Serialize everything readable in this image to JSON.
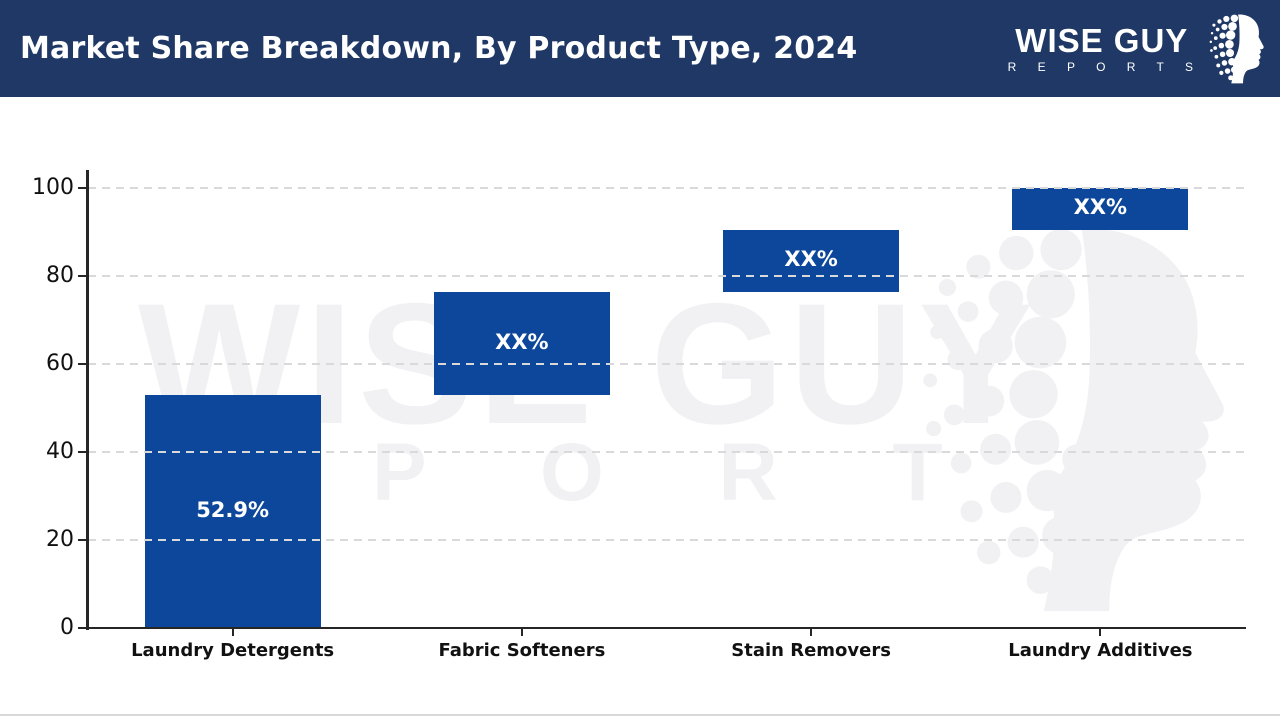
{
  "header": {
    "title": "Market Share Breakdown, By Product Type, 2024",
    "logo": {
      "line1": "WISE GUY",
      "line2": "R E P O R T S"
    },
    "bg_color": "#1F3865"
  },
  "watermark": {
    "line1": "WISE GUY",
    "line2": "P O R T S"
  },
  "chart_data": {
    "type": "bar",
    "subtype": "floating-waterfall",
    "title": "Market Share Breakdown, By Product Type, 2024",
    "categories": [
      "Laundry Detergents",
      "Fabric Softeners",
      "Stain Removers",
      "Laundry Additives"
    ],
    "segments": [
      {
        "category": "Laundry Detergents",
        "start": 0,
        "end": 52.9,
        "label": "52.9%"
      },
      {
        "category": "Fabric Softeners",
        "start": 52.9,
        "end": 76.3,
        "label": "XX%"
      },
      {
        "category": "Stain Removers",
        "start": 76.3,
        "end": 90.4,
        "label": "XX%"
      },
      {
        "category": "Laundry Additives",
        "start": 90.4,
        "end": 100,
        "label": "XX%"
      }
    ],
    "xlabel": "",
    "ylabel": "",
    "ylim": [
      0,
      100
    ],
    "yticks": [
      0,
      20,
      40,
      60,
      80,
      100
    ],
    "grid": "horizontal-dashed",
    "legend": "none",
    "bar_color": "#0C479B",
    "bar_label_color": "#FFFFFF",
    "axis_color": "#262626",
    "gridline_color": "#D9D9D9"
  }
}
